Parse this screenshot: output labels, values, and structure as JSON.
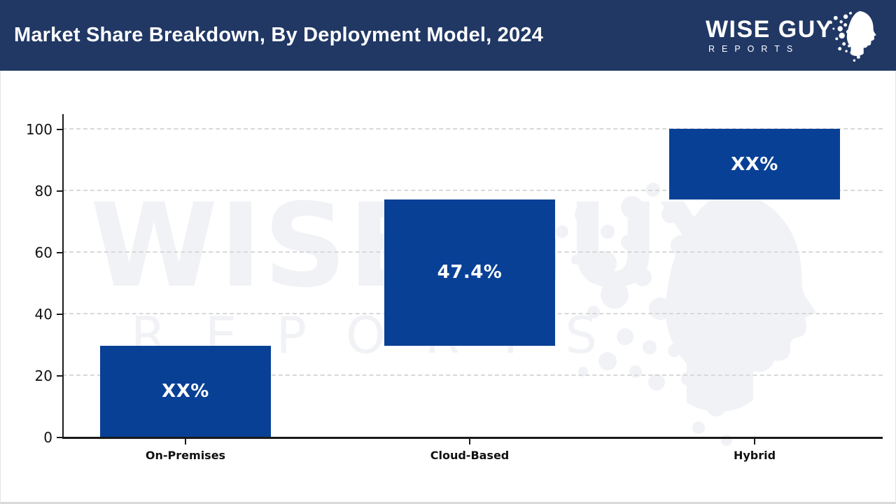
{
  "header": {
    "title": "Market Share Breakdown, By Deployment Model, 2024",
    "logo": {
      "line1": "WISE GUY",
      "line2": "REPORTS"
    }
  },
  "watermark": {
    "line1": "WISE GUY",
    "line2": "REPORTS"
  },
  "chart_data": {
    "type": "bar",
    "subtype": "floating-segment-waterfall",
    "title": "Market Share Breakdown, By Deployment Model, 2024",
    "categories": [
      "On-Premises",
      "Cloud-Based",
      "Hybrid"
    ],
    "segments": [
      {
        "category": "On-Premises",
        "start": 0,
        "end": 29.6,
        "label": "XX%"
      },
      {
        "category": "Cloud-Based",
        "start": 29.6,
        "end": 77.0,
        "label": "47.4%"
      },
      {
        "category": "Hybrid",
        "start": 77.0,
        "end": 100,
        "label": "XX%"
      }
    ],
    "ylim": [
      0,
      100
    ],
    "yticks": [
      0,
      20,
      40,
      60,
      80,
      100
    ],
    "xlabel": "",
    "ylabel": "",
    "grid": "horizontal-dashed",
    "legend": "none",
    "bar_color": "#084096",
    "bar_label_color": "#ffffff"
  },
  "colors": {
    "header_bg": "#213865",
    "bar_blue": "#084096",
    "watermark_gray": "#f1f2f5",
    "gridline_gray": "#d8d8d8"
  }
}
